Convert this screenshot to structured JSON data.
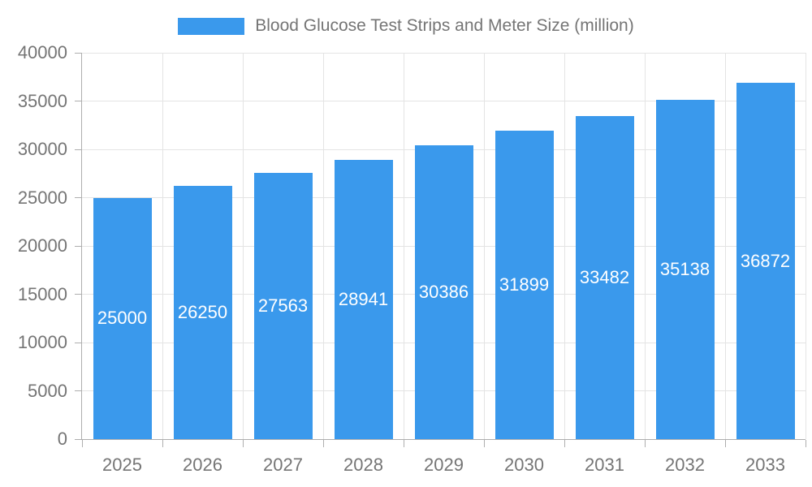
{
  "chart_data": {
    "type": "bar",
    "legend": {
      "position": "top-center",
      "items": [
        {
          "label": "Blood Glucose Test Strips and Meter Size (million)",
          "swatch_color": "#3a99ec"
        }
      ]
    },
    "categories": [
      "2025",
      "2026",
      "2027",
      "2028",
      "2029",
      "2030",
      "2031",
      "2032",
      "2033"
    ],
    "series": [
      {
        "name": "Blood Glucose Test Strips and Meter Size (million)",
        "values": [
          25000,
          26250,
          27563,
          28941,
          30386,
          31899,
          33482,
          35138,
          36872
        ]
      }
    ],
    "bar_value_labels": [
      25000,
      26250,
      27563,
      28941,
      30386,
      31899,
      33482,
      35138,
      36872
    ],
    "ytick_labels": [
      "0",
      "5000",
      "10000",
      "15000",
      "20000",
      "25000",
      "30000",
      "35000",
      "40000"
    ],
    "ylim": [
      0,
      40000
    ],
    "ytick_step": 5000,
    "grid": true,
    "colors": {
      "bar": "#3a99ec",
      "bar_label": "#ffffff",
      "axis": "#aeaeae",
      "grid": "#e4e4e4",
      "text": "#757575"
    }
  }
}
